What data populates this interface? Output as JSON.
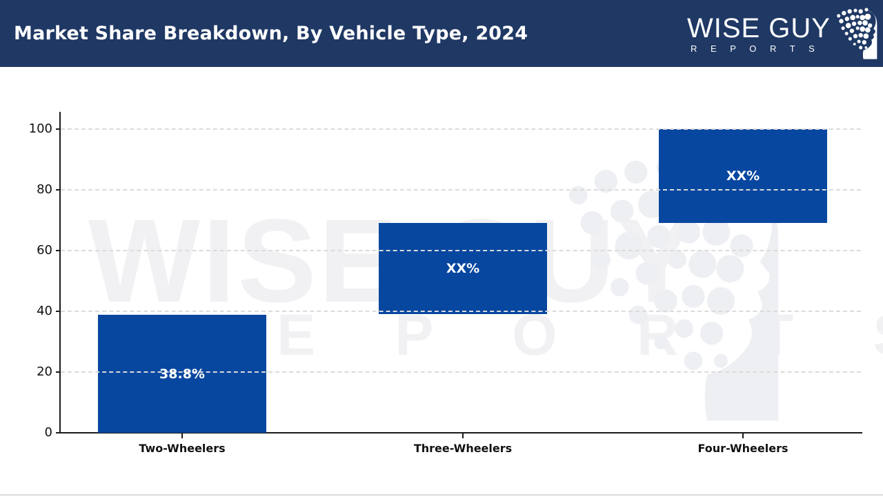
{
  "header": {
    "title": "Market Share Breakdown, By Vehicle Type, 2024",
    "bg_color": "#1f3864",
    "logo_line1": "WISE GUY",
    "logo_line2": "R E P O R T S"
  },
  "watermark": {
    "line1": "WISE GUY",
    "line2": "R E P O R T S"
  },
  "chart_data": {
    "type": "bar",
    "subtype": "waterfall-segments",
    "title": "Market Share Breakdown, By Vehicle Type, 2024",
    "categories": [
      "Two-Wheelers",
      "Three-Wheelers",
      "Four-Wheelers"
    ],
    "segments": [
      {
        "category": "Two-Wheelers",
        "start": 0,
        "end": 38.8,
        "label": "38.8%"
      },
      {
        "category": "Three-Wheelers",
        "start": 39,
        "end": 69,
        "label": "XX%"
      },
      {
        "category": "Four-Wheelers",
        "start": 69,
        "end": 100,
        "label": "XX%"
      }
    ],
    "xlabel": "",
    "ylabel": "",
    "ylim": [
      0,
      100
    ],
    "yticks": [
      0,
      20,
      40,
      60,
      80,
      100
    ],
    "bar_color": "#0847a0",
    "label_color": "#ffffff",
    "grid": "horizontal-dashed",
    "legend": "none"
  }
}
